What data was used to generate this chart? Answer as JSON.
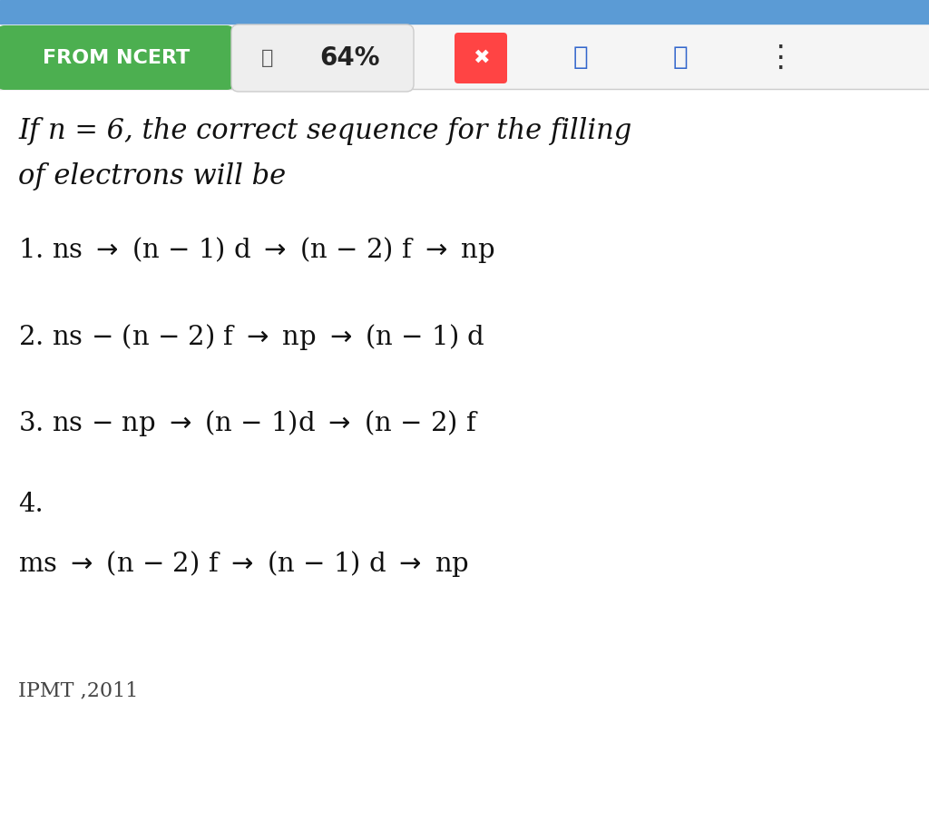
{
  "bg_color": "#ffffff",
  "ncert_bg_color": "#4caf50",
  "ncert_text": "FROM NCERT",
  "ncert_text_color": "#ffffff",
  "question_line1": "If n = 6, the correct sequence for the filling",
  "question_line2": "of electrons will be",
  "footer": "IPMT ,2011",
  "font_size_question": 22,
  "font_size_option": 21,
  "font_size_footer": 16,
  "font_size_ncert": 16,
  "font_size_percent": 20,
  "top_bar_color": "#5b9bd5",
  "header_bg_color": "#f5f5f5",
  "divider_color": "#cccccc"
}
